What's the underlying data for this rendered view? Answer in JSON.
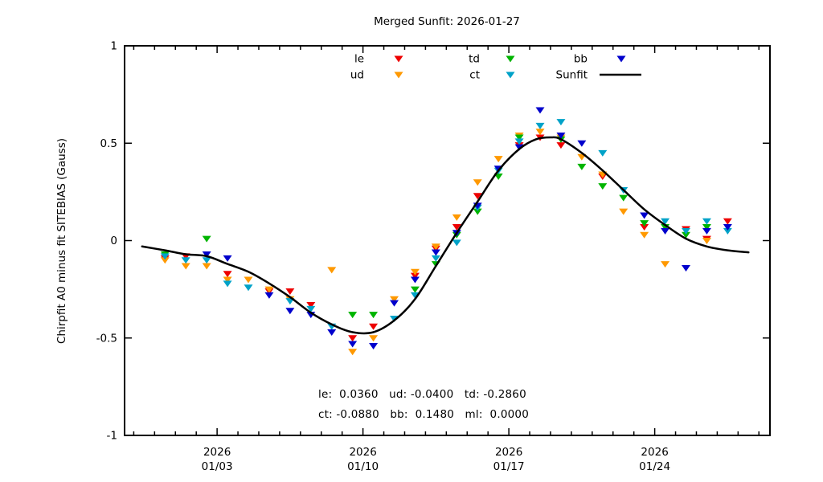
{
  "chart_data": {
    "type": "scatter",
    "title": "Merged Sunfit: 2026-01-27",
    "xlabel": "",
    "ylabel": "Chirpfit A0 minus fit SITEBIAS (Gauss)",
    "ylim": [
      -1,
      1
    ],
    "grid": false,
    "legend_position": "top-center-inside",
    "x_axis": {
      "note": "x values are days in January 2026 (0.5 = 2025-12-31 12:00); daily minor ticks",
      "domain_days": [
        -1.44,
        29.53
      ],
      "minor_tick_every_days": 1,
      "major_ticks": [
        {
          "day": 3,
          "line1": "2026",
          "line2": "01/03"
        },
        {
          "day": 10,
          "line1": "2026",
          "line2": "01/10"
        },
        {
          "day": 17,
          "line1": "2026",
          "line2": "01/17"
        },
        {
          "day": 24,
          "line1": "2026",
          "line2": "01/24"
        }
      ]
    },
    "y_ticks": [
      {
        "v": -1,
        "label": "-1"
      },
      {
        "v": -0.5,
        "label": "-0.5"
      },
      {
        "v": 0,
        "label": "0"
      },
      {
        "v": 0.5,
        "label": "0.5"
      },
      {
        "v": 1,
        "label": "1"
      }
    ],
    "legend": [
      {
        "label": "le",
        "series": "le"
      },
      {
        "label": "ud",
        "series": "ud"
      },
      {
        "label": "td",
        "series": "td"
      },
      {
        "label": "ct",
        "series": "ct"
      },
      {
        "label": "bb",
        "series": "bb"
      },
      {
        "label": "Sunfit",
        "series": "Sunfit"
      }
    ],
    "series": [
      {
        "name": "le",
        "type": "points",
        "marker": "triangle-down",
        "color": "#ee0000",
        "points": [
          [
            0.5,
            -0.09
          ],
          [
            1.5,
            -0.08
          ],
          [
            3.5,
            -0.17
          ],
          [
            5.5,
            -0.26
          ],
          [
            6.5,
            -0.26
          ],
          [
            7.5,
            -0.33
          ],
          [
            9.5,
            -0.5
          ],
          [
            10.5,
            -0.44
          ],
          [
            12.5,
            -0.18
          ],
          [
            13.5,
            -0.04
          ],
          [
            14.5,
            0.07
          ],
          [
            15.5,
            0.23
          ],
          [
            17.5,
            0.49
          ],
          [
            18.5,
            0.53
          ],
          [
            19.5,
            0.49
          ],
          [
            21.5,
            0.33
          ],
          [
            23.5,
            0.07
          ],
          [
            25.5,
            0.06
          ],
          [
            26.5,
            0.01
          ],
          [
            27.5,
            0.1
          ]
        ]
      },
      {
        "name": "ud",
        "type": "points",
        "marker": "triangle-down",
        "color": "#ff9900",
        "points": [
          [
            0.5,
            -0.1
          ],
          [
            1.5,
            -0.13
          ],
          [
            2.5,
            -0.13
          ],
          [
            3.5,
            -0.2
          ],
          [
            4.5,
            -0.2
          ],
          [
            5.5,
            -0.25
          ],
          [
            6.5,
            -0.3
          ],
          [
            8.5,
            -0.15
          ],
          [
            9.5,
            -0.57
          ],
          [
            10.5,
            -0.5
          ],
          [
            11.5,
            -0.3
          ],
          [
            12.5,
            -0.16
          ],
          [
            13.5,
            -0.03
          ],
          [
            14.5,
            0.12
          ],
          [
            15.5,
            0.3
          ],
          [
            16.5,
            0.42
          ],
          [
            17.5,
            0.54
          ],
          [
            18.5,
            0.56
          ],
          [
            19.5,
            0.53
          ],
          [
            20.5,
            0.43
          ],
          [
            21.5,
            0.34
          ],
          [
            22.5,
            0.15
          ],
          [
            23.5,
            0.03
          ],
          [
            24.5,
            -0.12
          ],
          [
            26.5,
            0.0
          ]
        ]
      },
      {
        "name": "td",
        "type": "points",
        "marker": "triangle-down",
        "color": "#00b400",
        "points": [
          [
            0.5,
            -0.07
          ],
          [
            2.5,
            0.01
          ],
          [
            9.5,
            -0.38
          ],
          [
            10.5,
            -0.38
          ],
          [
            12.5,
            -0.25
          ],
          [
            13.5,
            -0.12
          ],
          [
            14.5,
            0.03
          ],
          [
            15.5,
            0.15
          ],
          [
            16.5,
            0.33
          ],
          [
            17.5,
            0.53
          ],
          [
            19.5,
            0.52
          ],
          [
            20.5,
            0.38
          ],
          [
            21.5,
            0.28
          ],
          [
            22.5,
            0.22
          ],
          [
            23.5,
            0.09
          ],
          [
            24.5,
            0.07
          ],
          [
            25.5,
            0.03
          ],
          [
            26.5,
            0.07
          ]
        ]
      },
      {
        "name": "ct",
        "type": "points",
        "marker": "triangle-down",
        "color": "#00a2c8",
        "points": [
          [
            0.5,
            -0.08
          ],
          [
            1.5,
            -0.1
          ],
          [
            2.5,
            -0.1
          ],
          [
            3.5,
            -0.22
          ],
          [
            4.5,
            -0.24
          ],
          [
            6.5,
            -0.31
          ],
          [
            7.5,
            -0.35
          ],
          [
            8.5,
            -0.44
          ],
          [
            11.5,
            -0.4
          ],
          [
            12.5,
            -0.28
          ],
          [
            13.5,
            -0.09
          ],
          [
            14.5,
            -0.01
          ],
          [
            15.5,
            0.17
          ],
          [
            16.5,
            0.36
          ],
          [
            17.5,
            0.51
          ],
          [
            18.5,
            0.59
          ],
          [
            19.5,
            0.61
          ],
          [
            21.5,
            0.45
          ],
          [
            22.5,
            0.26
          ],
          [
            24.5,
            0.1
          ],
          [
            25.5,
            0.05
          ],
          [
            26.5,
            0.1
          ],
          [
            27.5,
            0.05
          ]
        ]
      },
      {
        "name": "bb",
        "type": "points",
        "marker": "triangle-down",
        "color": "#0000cc",
        "points": [
          [
            2.5,
            -0.07
          ],
          [
            3.5,
            -0.09
          ],
          [
            5.5,
            -0.28
          ],
          [
            6.5,
            -0.36
          ],
          [
            7.5,
            -0.38
          ],
          [
            8.5,
            -0.47
          ],
          [
            9.5,
            -0.53
          ],
          [
            10.5,
            -0.54
          ],
          [
            11.5,
            -0.32
          ],
          [
            12.5,
            -0.2
          ],
          [
            13.5,
            -0.06
          ],
          [
            14.5,
            0.04
          ],
          [
            15.5,
            0.18
          ],
          [
            16.5,
            0.37
          ],
          [
            17.5,
            0.48
          ],
          [
            18.5,
            0.67
          ],
          [
            19.5,
            0.54
          ],
          [
            20.5,
            0.5
          ],
          [
            23.5,
            0.13
          ],
          [
            24.5,
            0.05
          ],
          [
            25.5,
            -0.14
          ],
          [
            26.5,
            0.05
          ],
          [
            27.5,
            0.07
          ]
        ]
      },
      {
        "name": "Sunfit",
        "type": "line",
        "color": "#000000",
        "points": [
          [
            -0.6,
            -0.03
          ],
          [
            0.5,
            -0.05
          ],
          [
            1.5,
            -0.07
          ],
          [
            2.5,
            -0.08
          ],
          [
            3.5,
            -0.12
          ],
          [
            4.5,
            -0.16
          ],
          [
            5.5,
            -0.22
          ],
          [
            6.5,
            -0.29
          ],
          [
            7.5,
            -0.37
          ],
          [
            8.5,
            -0.43
          ],
          [
            9.5,
            -0.47
          ],
          [
            10.5,
            -0.47
          ],
          [
            11.5,
            -0.41
          ],
          [
            12.5,
            -0.3
          ],
          [
            13.5,
            -0.13
          ],
          [
            14.5,
            0.04
          ],
          [
            15.5,
            0.2
          ],
          [
            16.5,
            0.36
          ],
          [
            17.5,
            0.47
          ],
          [
            18.3,
            0.52
          ],
          [
            19.0,
            0.53
          ],
          [
            19.5,
            0.52
          ],
          [
            20.5,
            0.45
          ],
          [
            21.5,
            0.36
          ],
          [
            22.5,
            0.26
          ],
          [
            23.5,
            0.16
          ],
          [
            24.5,
            0.08
          ],
          [
            25.5,
            0.01
          ],
          [
            26.5,
            -0.03
          ],
          [
            27.5,
            -0.05
          ],
          [
            28.5,
            -0.06
          ]
        ]
      }
    ],
    "annotations": {
      "line1": "le:  0.0360   ud: -0.0400   td: -0.2860",
      "line2": "ct: -0.0880   bb:  0.1480   ml:  0.0000"
    },
    "fit_values": {
      "le": 0.036,
      "ud": -0.04,
      "td": -0.286,
      "ct": -0.088,
      "bb": 0.148,
      "ml": 0.0
    }
  }
}
